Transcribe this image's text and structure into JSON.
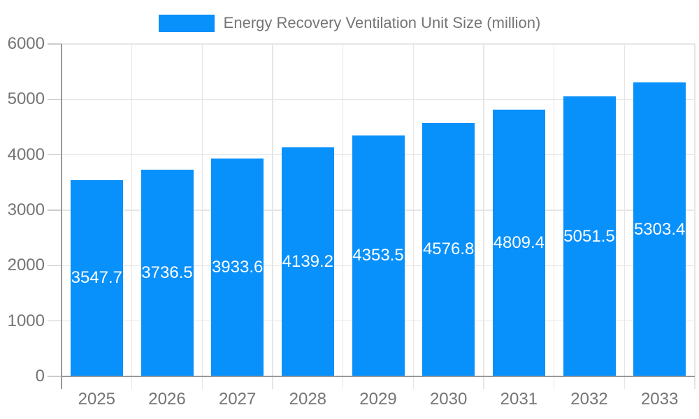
{
  "chart_data": {
    "type": "bar",
    "title": "Energy Recovery Ventilation Unit Size (million)",
    "legend": [
      "Energy Recovery Ventilation Unit Size (million)"
    ],
    "legend_position": "top",
    "categories": [
      "2025",
      "2026",
      "2027",
      "2028",
      "2029",
      "2030",
      "2031",
      "2032",
      "2033"
    ],
    "values": [
      3547.7,
      3736.5,
      3933.6,
      4139.2,
      4353.5,
      4576.8,
      4809.4,
      5051.5,
      5303.4
    ],
    "bar_labels": [
      "3547.7",
      "3736.5",
      "3933.6",
      "4139.2",
      "4353.5",
      "4576.8",
      "4809.4",
      "5051.5",
      "5303.4"
    ],
    "xlabel": "",
    "ylabel": "",
    "ylim": [
      0,
      6000
    ],
    "yticks": [
      0,
      1000,
      2000,
      3000,
      4000,
      5000,
      6000
    ],
    "grid": true
  },
  "colors": {
    "bar": "#0890fb",
    "bar_label": "#ffffff",
    "axis": "#999999",
    "grid": "#e6e6e6",
    "tick": "#cccccc",
    "text": "#757575",
    "background": "#ffffff"
  }
}
